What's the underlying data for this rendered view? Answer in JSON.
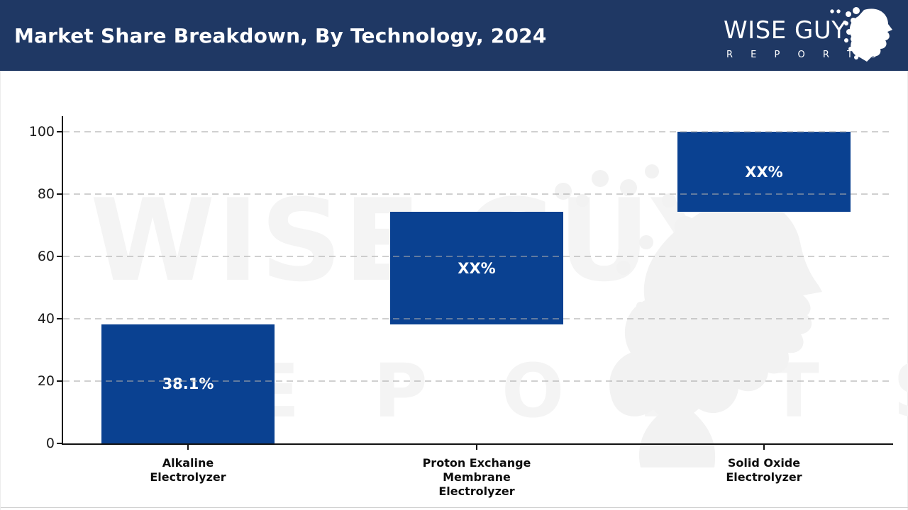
{
  "header": {
    "title": "Market Share Breakdown, By Technology, 2024",
    "bg_color": "#1f3864",
    "logo": {
      "primary": "WISE GUY",
      "secondary": "R E P O R T S"
    }
  },
  "watermark": {
    "primary": "WISE GUY",
    "secondary": "R E P O R T S"
  },
  "chart_data": {
    "type": "bar",
    "variant": "stepped-waterfall",
    "title": "Market Share Breakdown, By Technology, 2024",
    "xlabel": "",
    "ylabel": "",
    "ylim": [
      0,
      105
    ],
    "yticks": [
      0,
      20,
      40,
      60,
      80,
      100
    ],
    "grid": "horizontal-dashed",
    "legend": "none",
    "bar_color": "#0a4191",
    "value_label_color": "#ffffff",
    "categories": [
      [
        "Alkaline",
        "Electrolyzer"
      ],
      [
        "Proton Exchange",
        "Membrane",
        "Electrolyzer"
      ],
      [
        "Solid Oxide",
        "Electrolyzer"
      ]
    ],
    "bars": [
      {
        "name": "Alkaline Electrolyzer",
        "start": 0,
        "end": 38.1,
        "label": "38.1%"
      },
      {
        "name": "Proton Exchange Membrane Electrolyzer",
        "start": 38.1,
        "end": 74.3,
        "label": "XX%"
      },
      {
        "name": "Solid Oxide Electrolyzer",
        "start": 74.3,
        "end": 100,
        "label": "XX%"
      }
    ]
  }
}
